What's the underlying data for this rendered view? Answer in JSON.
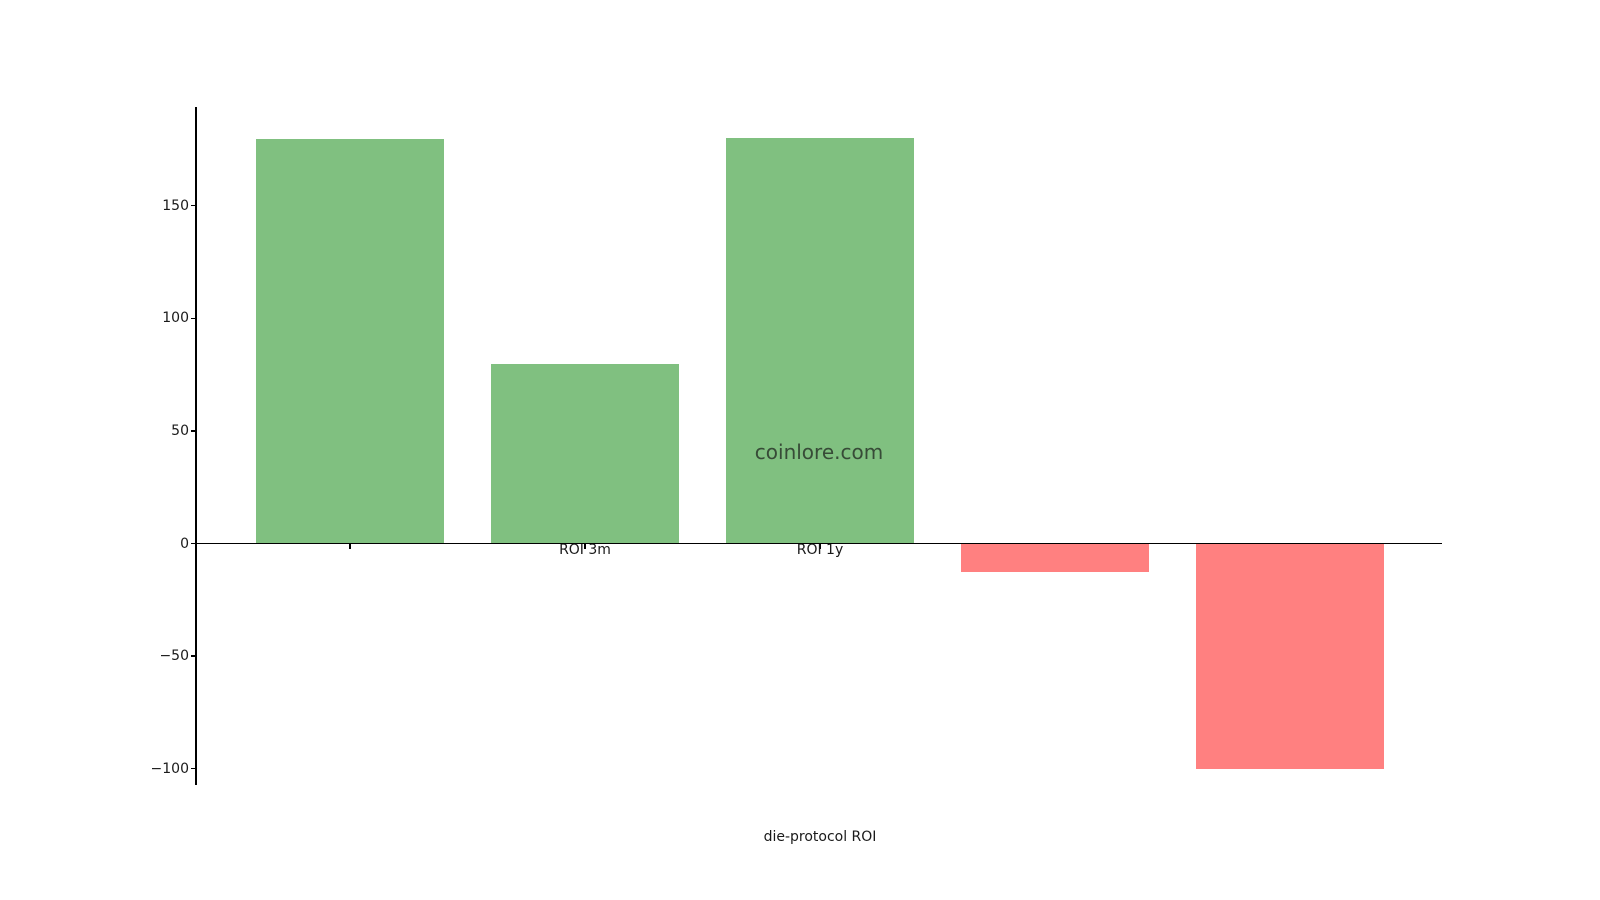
{
  "chart_data": {
    "type": "bar",
    "title": "",
    "xlabel": "die-protocol ROI",
    "ylabel": "",
    "watermark": "coinlore.com",
    "categories": [
      "",
      "ROI 3m",
      "ROI 1y",
      "",
      ""
    ],
    "values": [
      179.7,
      79.6,
      180.1,
      -12.7,
      -100.1
    ],
    "bar_colors": [
      "#80c080",
      "#80c080",
      "#80c080",
      "#ff8080",
      "#ff8080"
    ],
    "positive_color": "#80c080",
    "negative_color": "#ff8080",
    "ytick_values": [
      150,
      100,
      50,
      0,
      -50,
      -100
    ],
    "ytick_labels": [
      "150",
      "100",
      "50",
      "0",
      "−50",
      "−100"
    ],
    "ylim": [
      -107,
      194
    ],
    "grid": false,
    "legend": "none",
    "notes": "x tick labels for bars 1, 4 and 5 are not visible; labels under negative bars are covered by the bars"
  }
}
